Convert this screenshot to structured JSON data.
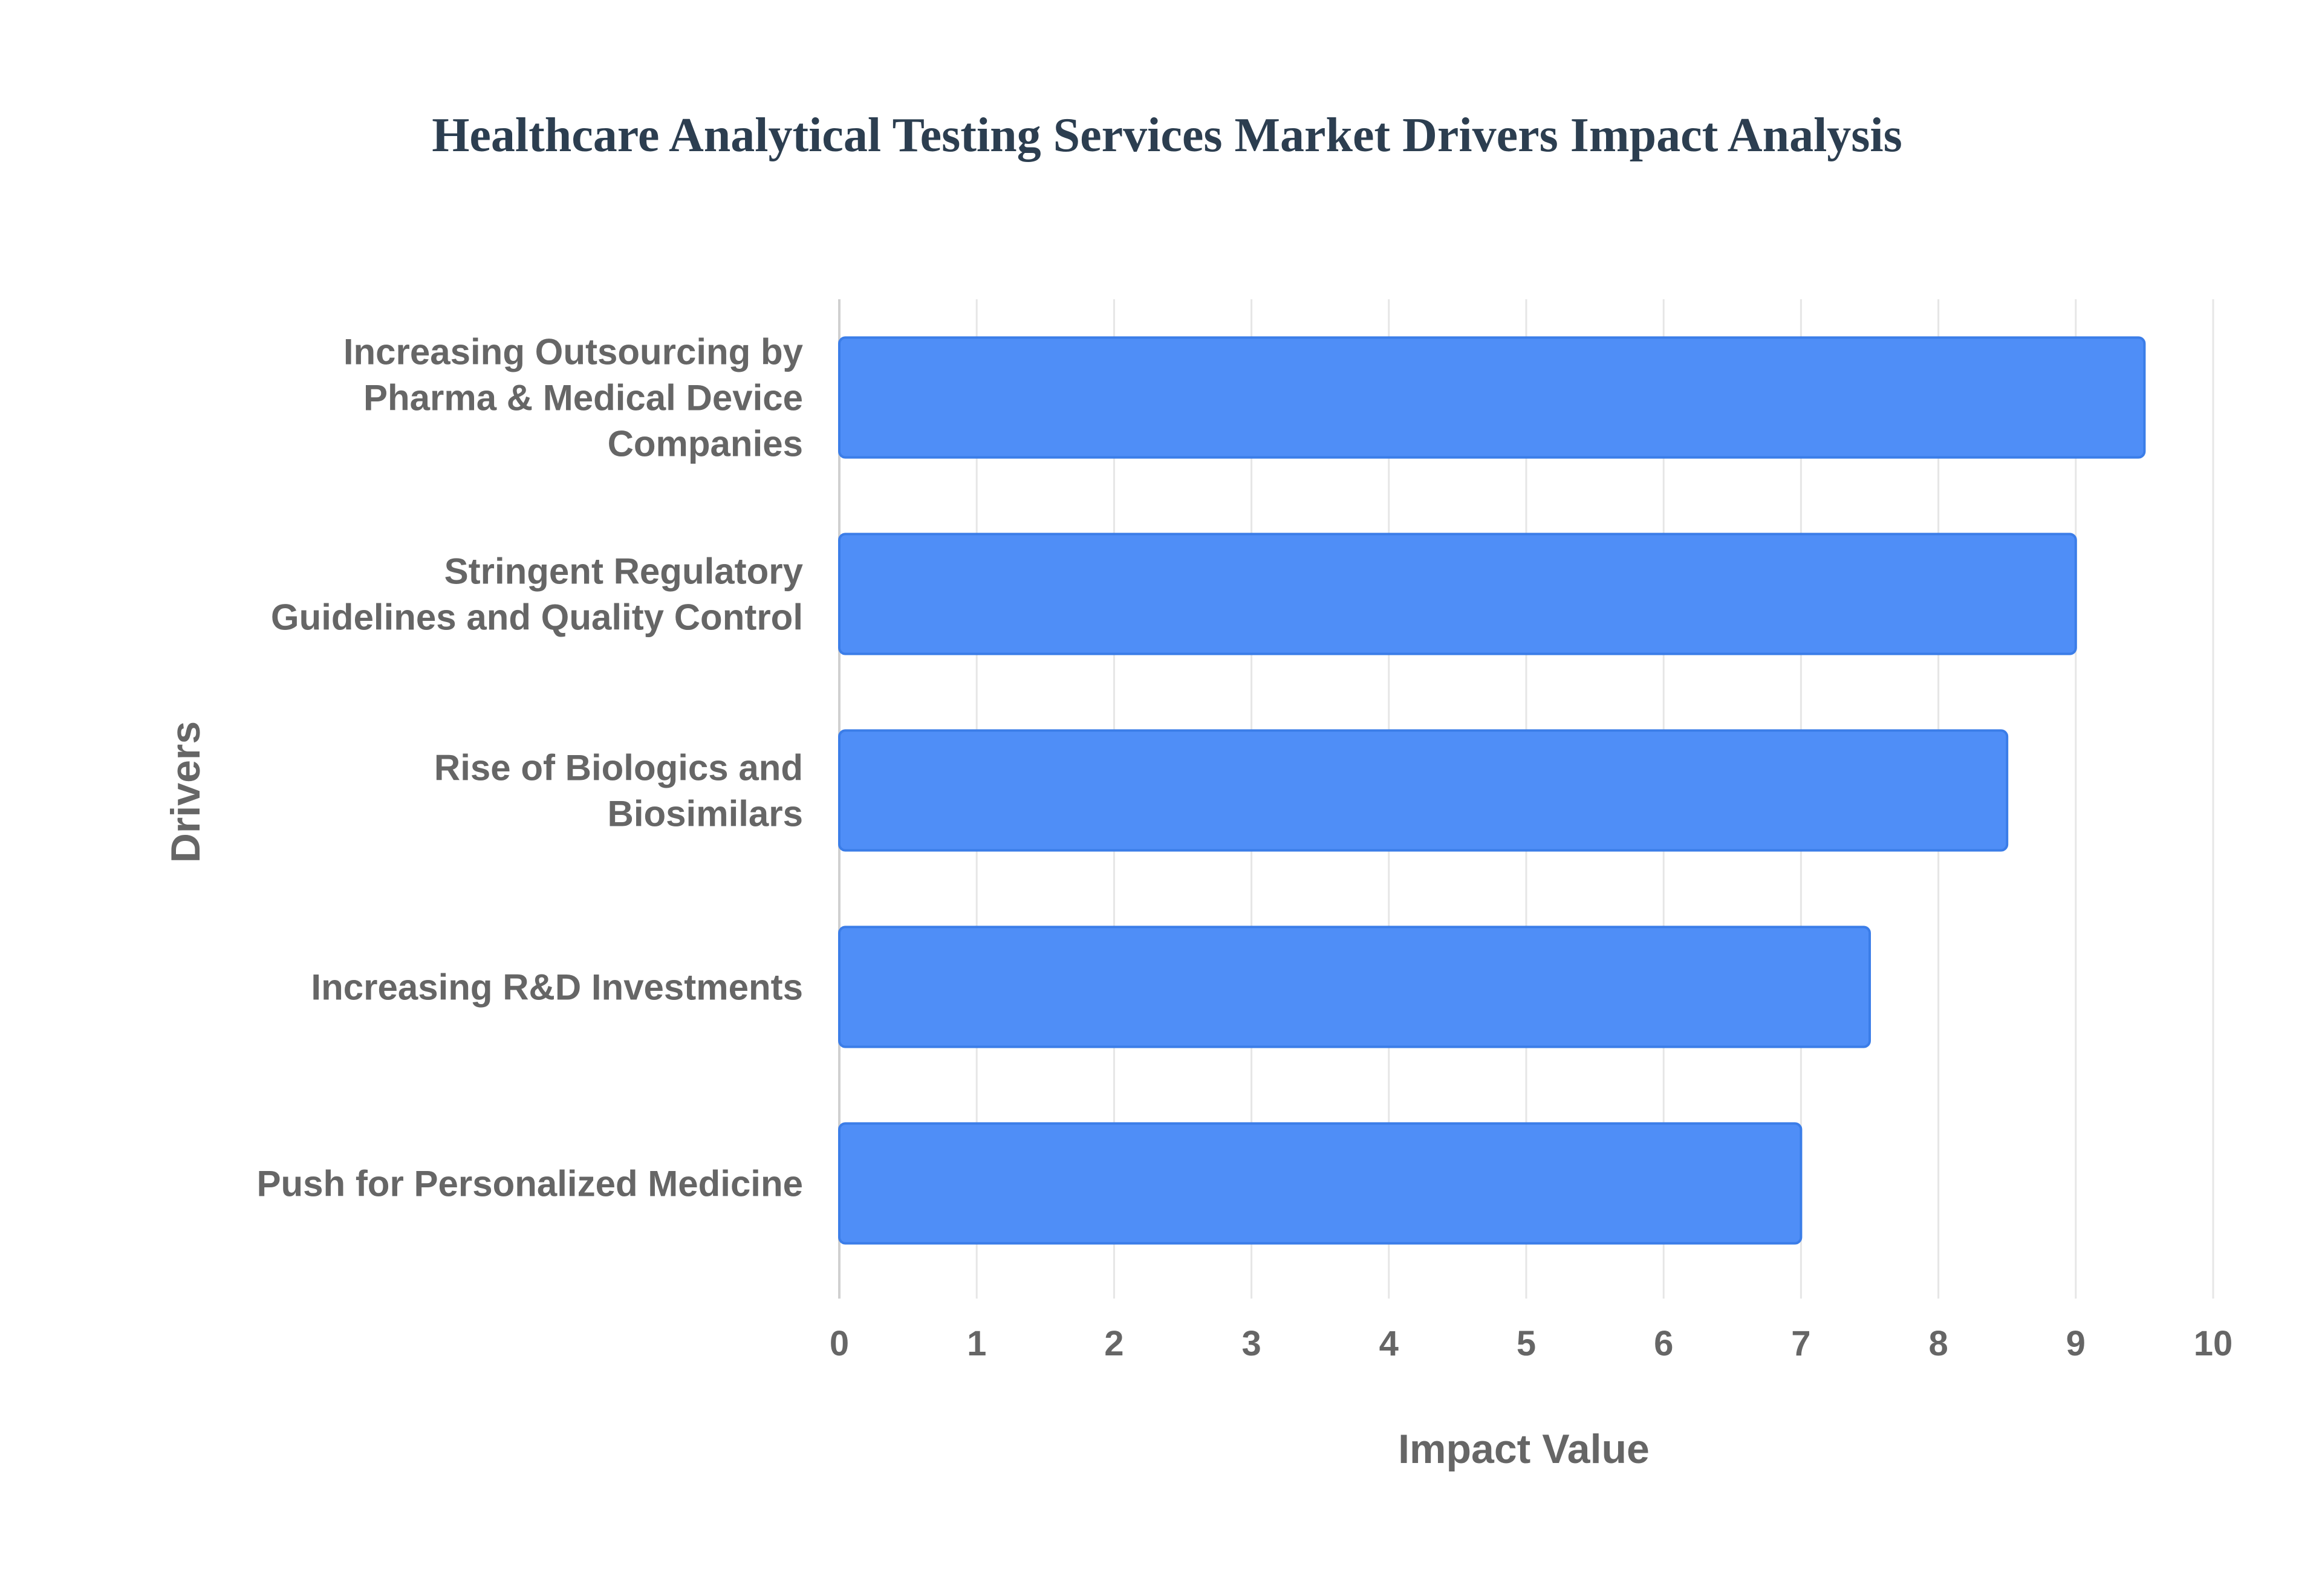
{
  "chart_data": {
    "type": "bar",
    "orientation": "horizontal",
    "title": "Healthcare Analytical Testing Services Market Drivers Impact Analysis",
    "xlabel": "Impact Value",
    "ylabel": "Drivers",
    "xlim": [
      0,
      10
    ],
    "x_ticks": [
      "0",
      "1",
      "2",
      "3",
      "4",
      "5",
      "6",
      "7",
      "8",
      "9",
      "10"
    ],
    "grid": true,
    "legend": "none",
    "bar_color": "#4f8ef7",
    "bar_edge_color": "#3b7de8",
    "categories": [
      [
        "Increasing Outsourcing by",
        "Pharma & Medical Device",
        "Companies"
      ],
      [
        "Stringent Regulatory",
        "Guidelines and Quality Control"
      ],
      [
        "Rise of Biologics and",
        "Biosimilars"
      ],
      [
        "Increasing R&D Investments"
      ],
      [
        "Push for Personalized Medicine"
      ]
    ],
    "values": [
      9.5,
      9.0,
      8.5,
      7.5,
      7.0
    ]
  }
}
